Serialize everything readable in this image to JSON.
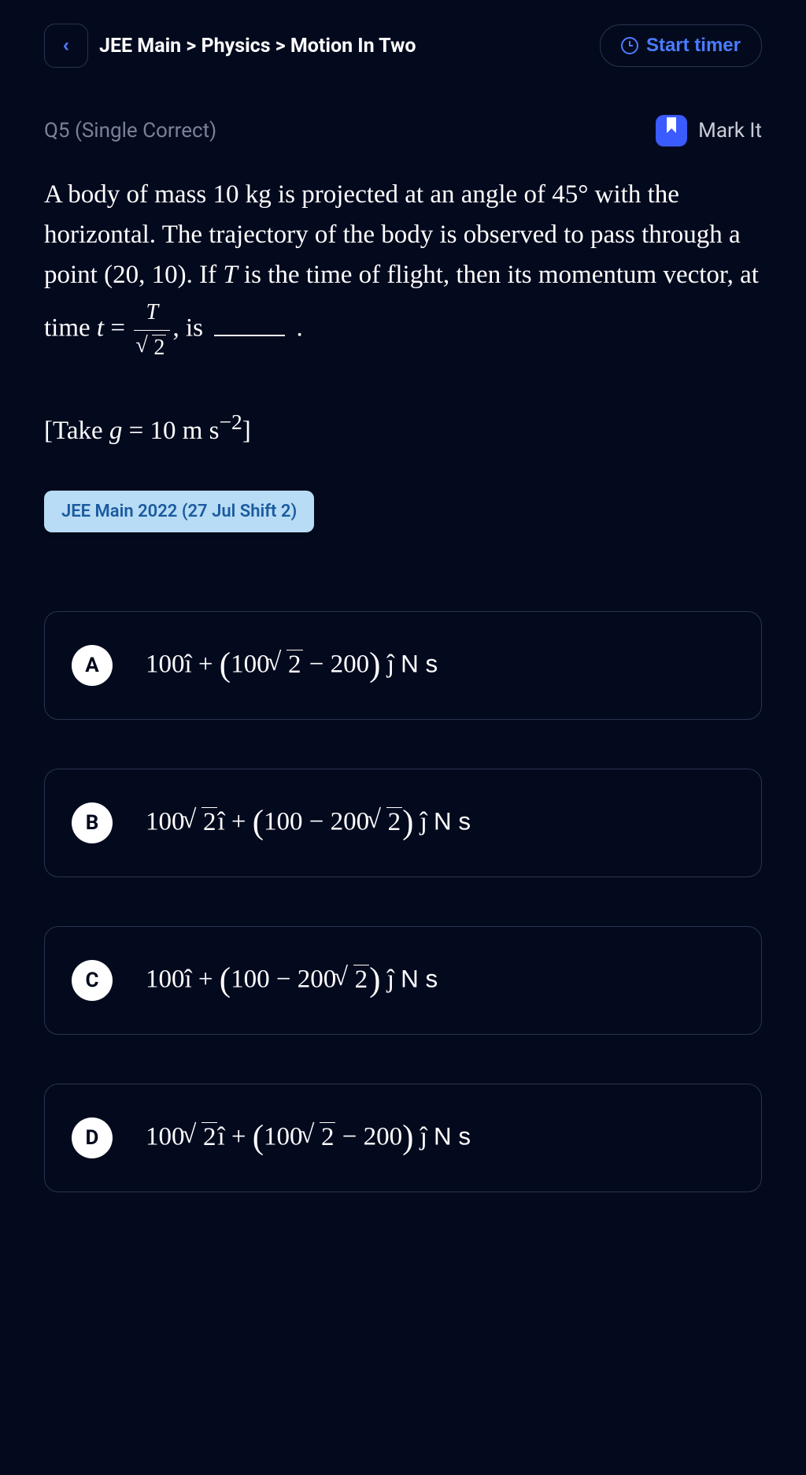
{
  "colors": {
    "background": "#040a1e",
    "text": "#ffffff",
    "muted": "#7a8199",
    "accent": "#4a7cff",
    "border": "#2a3350",
    "chip_bg": "#b8dcf5",
    "chip_text": "#1a5a9e",
    "bookmark": "#3a5bff"
  },
  "header": {
    "breadcrumb": "JEE Main > Physics > Motion In Two",
    "timer_label": "Start timer"
  },
  "meta": {
    "question_label": "Q5 (Single Correct)",
    "mark_label": "Mark It"
  },
  "question": {
    "mass": "10",
    "mass_unit": "kg",
    "angle": "45°",
    "point": "(20, 10)",
    "time_of_flight_symbol": "T",
    "frac_num": "T",
    "frac_den_radicand": "2",
    "line1_a": "A body of mass ",
    "line1_b": " is projected at an angle of ",
    "line1_c": " with the horizontal. The trajectory of the body is observed to pass through a point ",
    "line1_d": ". If ",
    "line1_e": " is the time of flight, then its momentum vector, at time ",
    "line1_f": ", is ",
    "line1_g": " .",
    "g_line_a": "[Take ",
    "g_sym": "g",
    "g_eq": " = 10 m s",
    "g_exp": "−2",
    "g_line_b": "]"
  },
  "tag": "JEE Main 2022 (27 Jul Shift 2)",
  "options": [
    {
      "letter": "A",
      "coef_i": "100",
      "i_sqrt": "",
      "paren_a": "100",
      "paren_a_sqrt": "2",
      "paren_op": " − ",
      "paren_b": "200",
      "paren_b_sqrt": "",
      "unit": "N s"
    },
    {
      "letter": "B",
      "coef_i": "100",
      "i_sqrt": "2",
      "paren_a": "100",
      "paren_a_sqrt": "",
      "paren_op": " − ",
      "paren_b": "200",
      "paren_b_sqrt": "2",
      "unit": "N s"
    },
    {
      "letter": "C",
      "coef_i": "100",
      "i_sqrt": "",
      "paren_a": "100",
      "paren_a_sqrt": "",
      "paren_op": " − ",
      "paren_b": "200",
      "paren_b_sqrt": "2",
      "unit": "N s"
    },
    {
      "letter": "D",
      "coef_i": "100",
      "i_sqrt": "2",
      "paren_a": "100",
      "paren_a_sqrt": "2",
      "paren_op": " − ",
      "paren_b": "200",
      "paren_b_sqrt": "",
      "unit": "N s"
    }
  ]
}
